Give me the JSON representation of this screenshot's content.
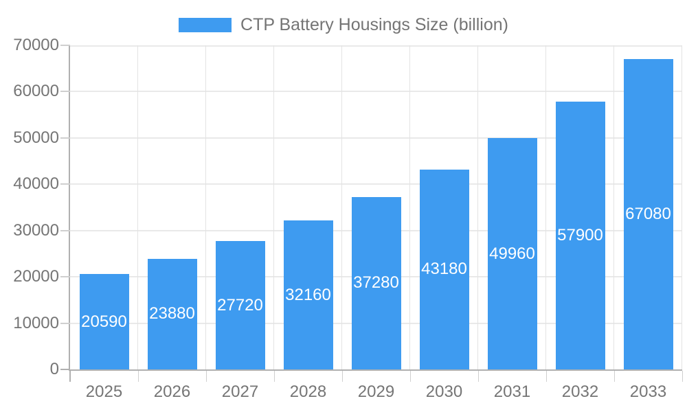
{
  "chart_data": {
    "type": "bar",
    "legend": {
      "label": "CTP Battery Housings Size (billion)",
      "position": "top"
    },
    "categories": [
      "2025",
      "2026",
      "2027",
      "2028",
      "2029",
      "2030",
      "2031",
      "2032",
      "2033"
    ],
    "series": [
      {
        "name": "CTP Battery Housings Size (billion)",
        "values": [
          20590,
          23880,
          27720,
          32160,
          37280,
          43180,
          49960,
          57900,
          67080
        ]
      }
    ],
    "xlabel": "",
    "ylabel": "",
    "ylim": [
      0,
      70000
    ],
    "y_ticks": [
      0,
      10000,
      20000,
      30000,
      40000,
      50000,
      60000,
      70000
    ],
    "grid": true,
    "bar_value_labels": "inside-center"
  },
  "colors": {
    "bar": "#3E9BF0",
    "bar_label": "#ffffff",
    "axis_text": "#757575",
    "legend_text": "#747474",
    "axis_line": "#b0b0b0",
    "tick": "#cfcfcf",
    "grid_h": "#e9e9e9",
    "grid_v": "#e3e3e3",
    "background": "#ffffff"
  }
}
